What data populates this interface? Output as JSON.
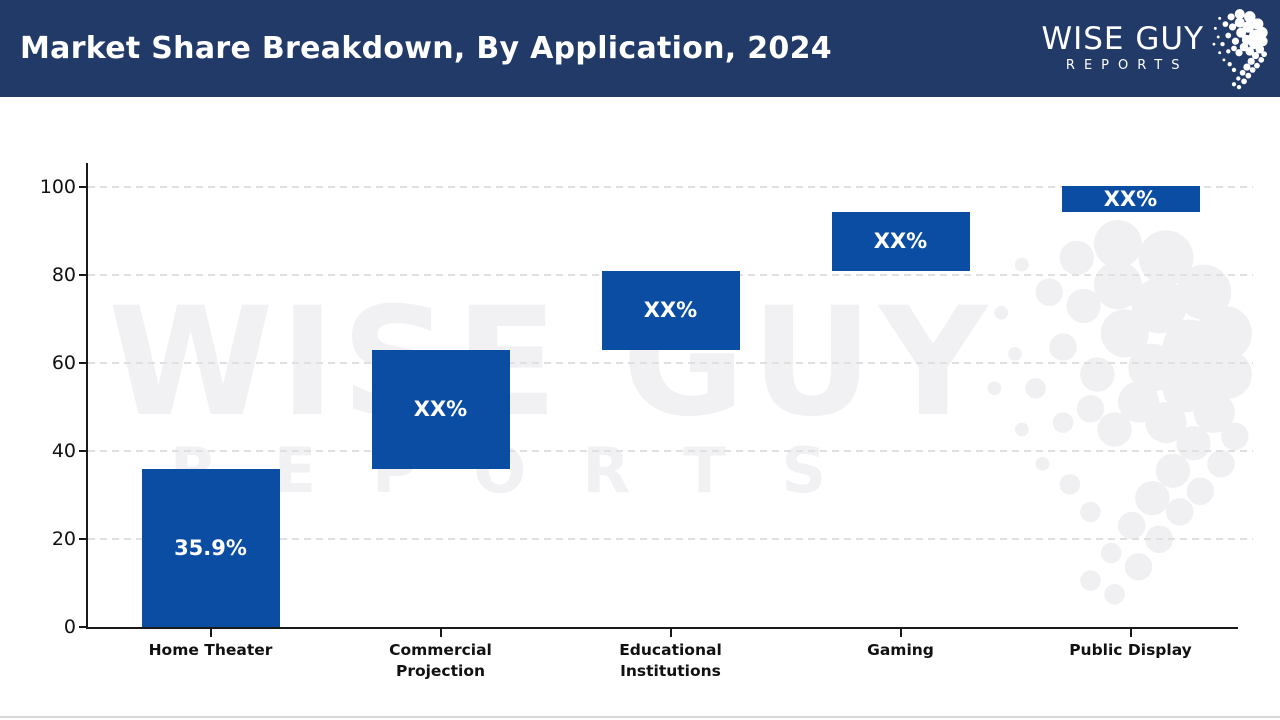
{
  "header": {
    "title": "Market Share Breakdown, By Application, 2024",
    "logo": {
      "line1": "WISE GUY",
      "line2": "REPORTS"
    }
  },
  "watermark": {
    "line1": "WISE GUY",
    "line2": "REPORTS"
  },
  "colors": {
    "header_bg": "#223a68",
    "bar": "#0b4da2",
    "bar_label": "#ffffff",
    "gridline": "#e0e0e0",
    "axis": "#1a1a1a",
    "watermark": "#f1f1f4"
  },
  "chart_data": {
    "type": "bar",
    "subtype": "waterfall",
    "title": "Market Share Breakdown, By Application, 2024",
    "categories": [
      "Home Theater",
      "Commercial Projection",
      "Educational Institutions",
      "Gaming",
      "Public Display"
    ],
    "bars": [
      {
        "category": "Home Theater",
        "start": 0,
        "end": 35.9,
        "label": "35.9%"
      },
      {
        "category": "Commercial Projection",
        "start": 35.9,
        "end": 63,
        "label": "XX%"
      },
      {
        "category": "Educational Institutions",
        "start": 63,
        "end": 81,
        "label": "XX%"
      },
      {
        "category": "Gaming",
        "start": 81,
        "end": 94.3,
        "label": "XX%"
      },
      {
        "category": "Public Display",
        "start": 94.3,
        "end": 100.2,
        "label": "XX%"
      }
    ],
    "yticks": [
      0,
      20,
      40,
      60,
      80,
      100
    ],
    "ylim": [
      0,
      105.5
    ],
    "xlabel": "",
    "ylabel": "",
    "grid": "dashed-horizontal",
    "legend": "none"
  }
}
